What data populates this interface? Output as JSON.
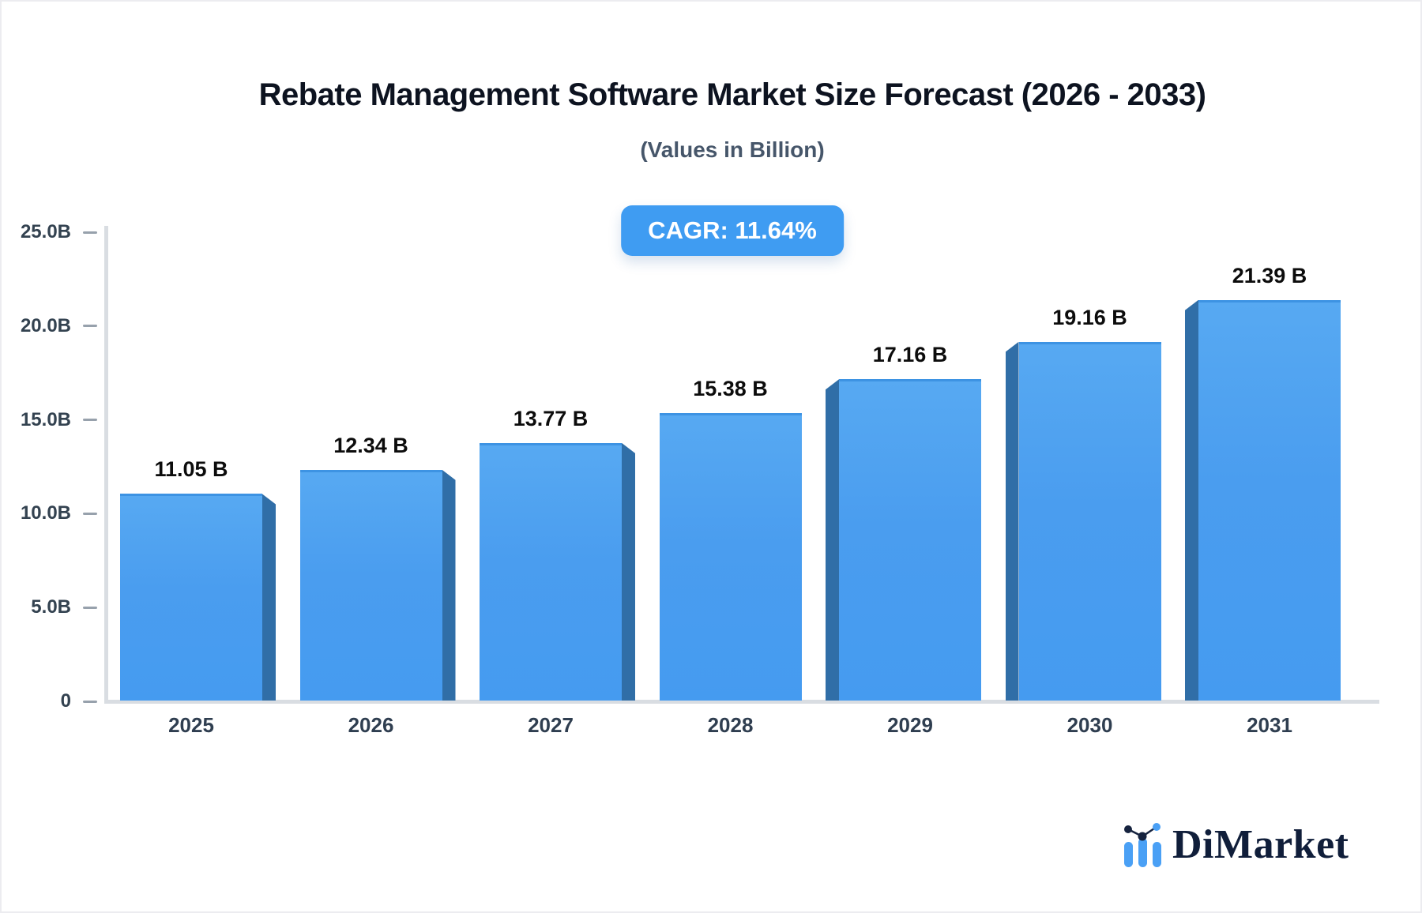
{
  "title": "Rebate Management Software Market Size Forecast (2026 - 2033)",
  "subtitle": "(Values in Billion)",
  "badge": {
    "label": "CAGR: 11.64%",
    "color": "#3f9cf2"
  },
  "logo": {
    "text": "DiMarket"
  },
  "chart_data": {
    "type": "bar",
    "title": "Rebate Management Software Market Size Forecast (2026 - 2033)",
    "subtitle": "(Values in Billion)",
    "annotation": "CAGR: 11.64%",
    "categories": [
      "2025",
      "2026",
      "2027",
      "2028",
      "2029",
      "2030",
      "2031"
    ],
    "values": [
      11.05,
      12.34,
      13.77,
      15.38,
      17.16,
      19.16,
      21.39
    ],
    "value_labels": [
      "11.05 B",
      "12.34 B",
      "13.77 B",
      "15.38 B",
      "17.16 B",
      "19.16 B",
      "21.39 B"
    ],
    "xlabel": "",
    "ylabel": "",
    "ylim": [
      0,
      25
    ],
    "yticks": {
      "labels": [
        "25.0B",
        "20.0B",
        "15.0B",
        "10.0B",
        "5.0B",
        "0"
      ],
      "values": [
        25,
        20,
        15,
        10,
        5,
        0
      ]
    },
    "grid": false,
    "legend": false,
    "bar_color": "#4a9def",
    "bar_side_color": "#306ea7",
    "style": "3d-perspective-bars"
  }
}
